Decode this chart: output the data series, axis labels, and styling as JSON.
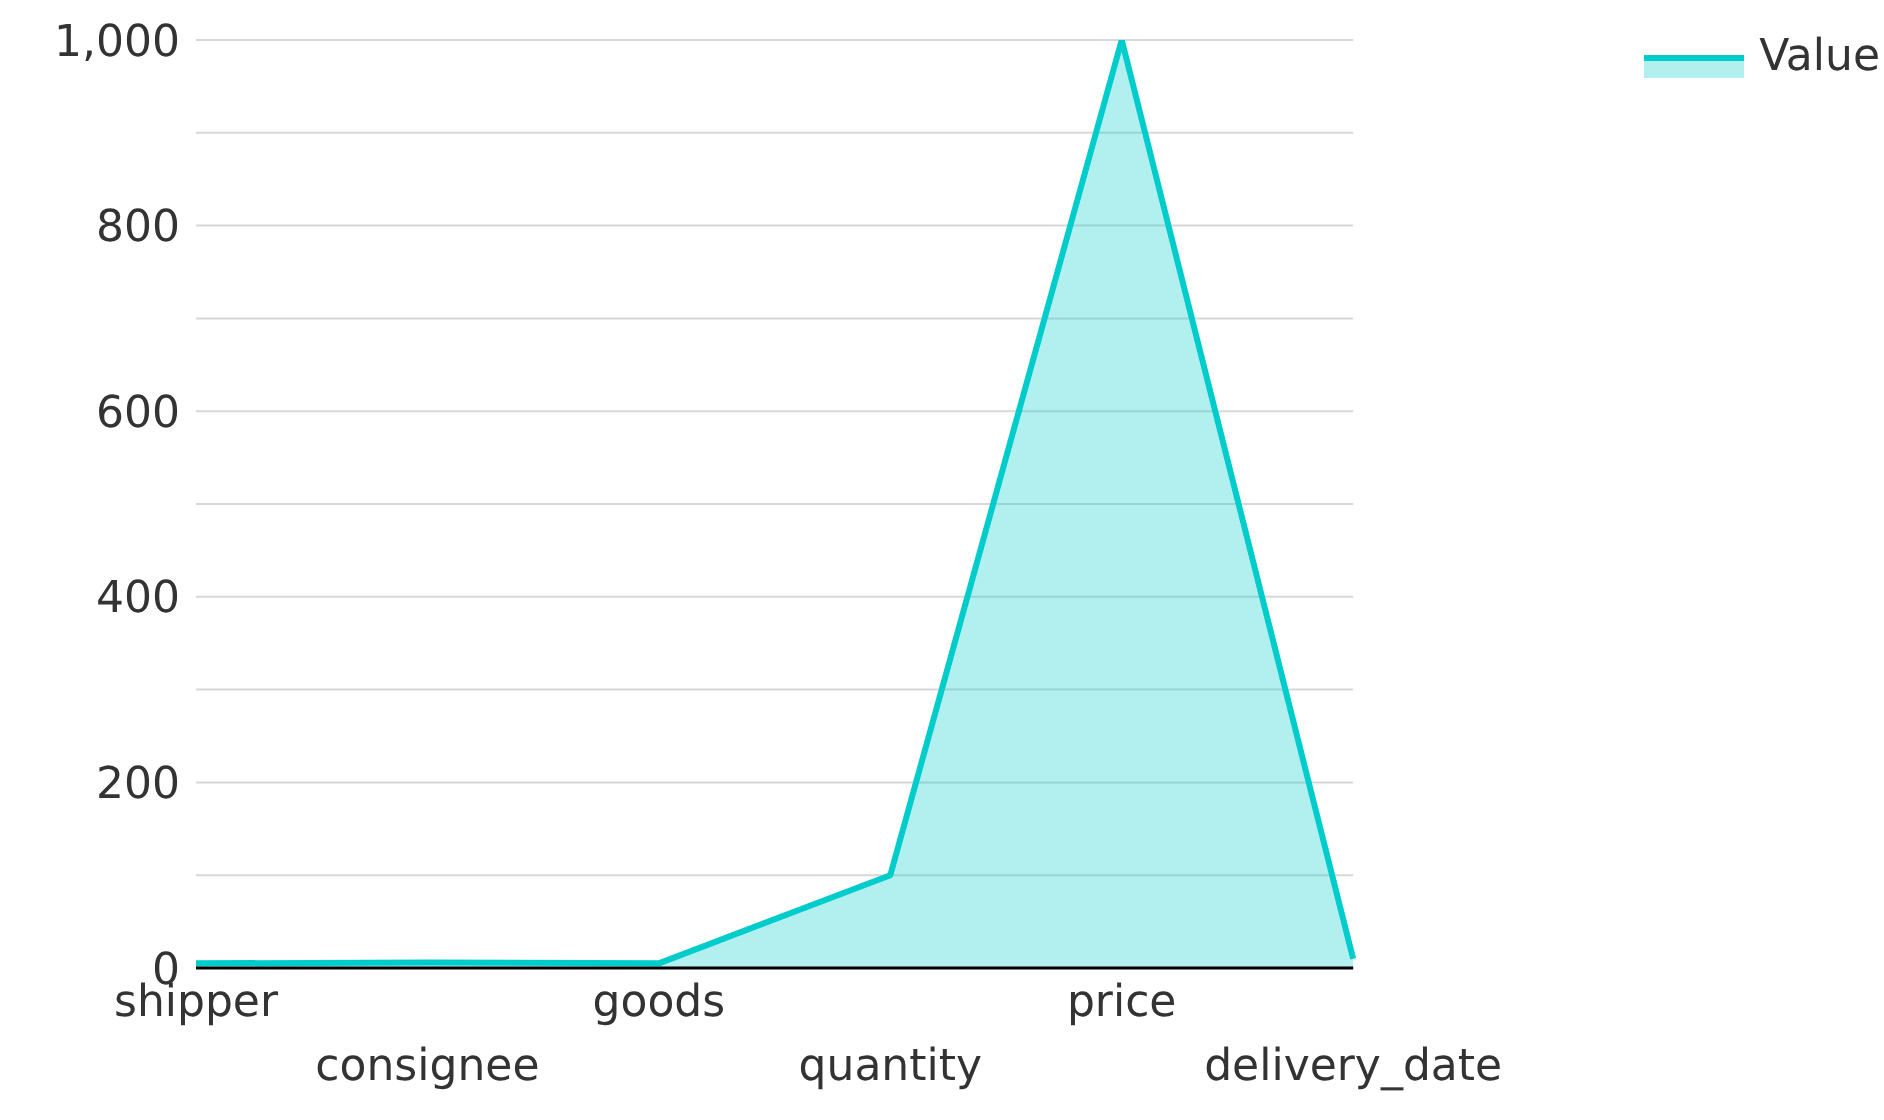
{
  "chart_data": {
    "type": "area",
    "categories": [
      "shipper",
      "consignee",
      "goods",
      "quantity",
      "price",
      "delivery_date"
    ],
    "series": [
      {
        "name": "Value",
        "color": "#00cccc",
        "values": [
          5,
          6,
          5,
          100,
          1000,
          10
        ]
      }
    ],
    "ylim": [
      0,
      1000
    ],
    "yticks": [
      0,
      {
        "value": 100,
        "label": null
      },
      200,
      {
        "value": 300,
        "label": null
      },
      400,
      {
        "value": 500,
        "label": null
      },
      600,
      {
        "value": 700,
        "label": null
      },
      800,
      {
        "value": 900,
        "label": null
      },
      {
        "value": 1000,
        "label": "1,000"
      }
    ],
    "grid": "y",
    "legend": "top right"
  }
}
